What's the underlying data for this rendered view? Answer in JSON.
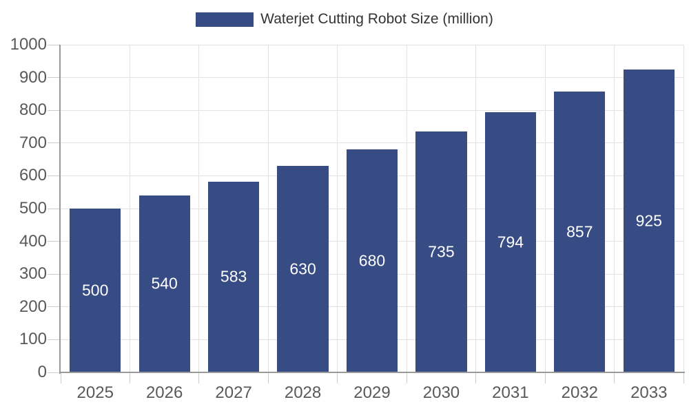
{
  "legend": {
    "label": "Waterjet Cutting Robot Size (million)"
  },
  "chart_data": {
    "type": "bar",
    "title": "Waterjet Cutting Robot Size (million)",
    "categories": [
      "2025",
      "2026",
      "2027",
      "2028",
      "2029",
      "2030",
      "2031",
      "2032",
      "2033"
    ],
    "values": [
      500,
      540,
      583,
      630,
      680,
      735,
      794,
      857,
      925
    ],
    "xlabel": "",
    "ylabel": "",
    "ylim": [
      0,
      1000
    ],
    "yticks": [
      0,
      100,
      200,
      300,
      400,
      500,
      600,
      700,
      800,
      900,
      1000
    ],
    "grid": true,
    "legend_position": "top",
    "bar_color": "#374b84",
    "value_label_color": "#ffffff",
    "grid_color": "#e2e2e2",
    "axis_color": "#999999",
    "tick_color": "#cccccc",
    "label_color": "#595959",
    "legend_text_color": "#333333"
  }
}
